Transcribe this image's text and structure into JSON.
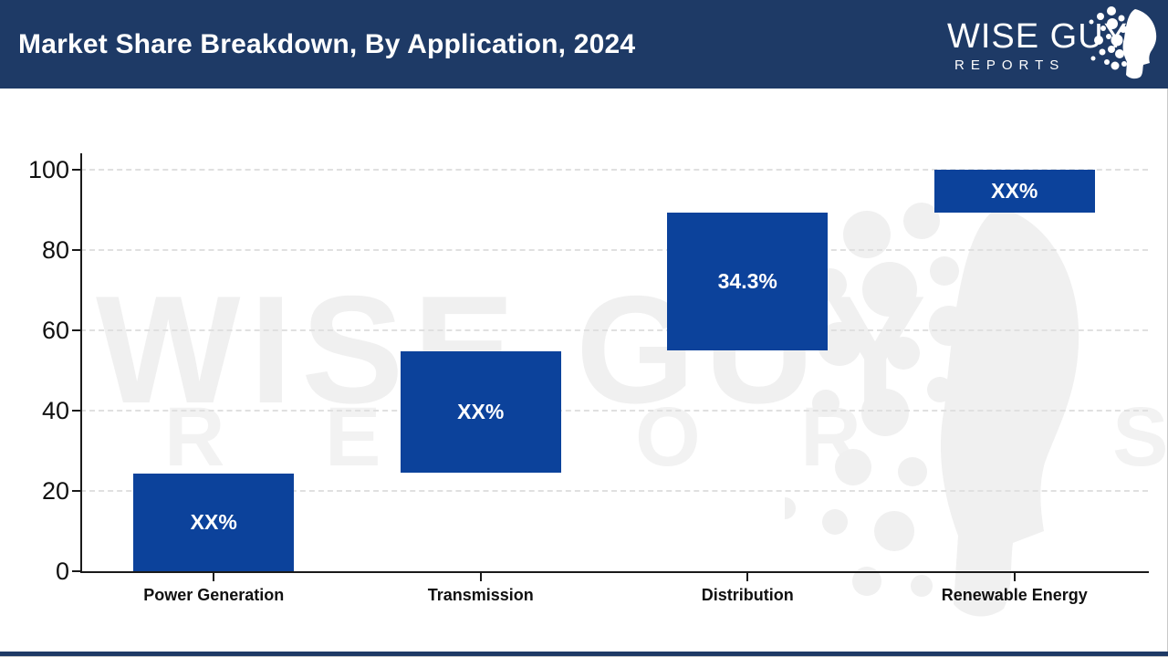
{
  "header": {
    "title": "Market Share Breakdown, By Application, 2024",
    "bg_color": "#1e3a66",
    "logo": {
      "line1": "WISE GUY",
      "line2": "R E P O R T S"
    }
  },
  "chart_data": {
    "type": "bar",
    "subtype": "floating-waterfall-segments",
    "title": "Market Share Breakdown, By Application, 2024",
    "categories": [
      "Power Generation",
      "Transmission",
      "Distribution",
      "Renewable Energy"
    ],
    "segments": [
      {
        "category": "Power Generation",
        "start": 0,
        "end": 24.4,
        "label": "XX%"
      },
      {
        "category": "Transmission",
        "start": 24.6,
        "end": 54.7,
        "label": "XX%"
      },
      {
        "category": "Distribution",
        "start": 55.0,
        "end": 89.3,
        "label": "34.3%"
      },
      {
        "category": "Renewable Energy",
        "start": 89.4,
        "end": 100,
        "label": "XX%"
      }
    ],
    "xlabel": "",
    "ylabel": "",
    "ylim": [
      0,
      100
    ],
    "yticks": [
      0,
      20,
      40,
      60,
      80,
      100
    ],
    "grid": "horizontal-dashed",
    "legend": "none",
    "bar_color": "#0c429b",
    "bar_label_color": "#ffffff",
    "watermark": {
      "line1": "WISE GUY",
      "line2": "R E P O R T S"
    }
  }
}
